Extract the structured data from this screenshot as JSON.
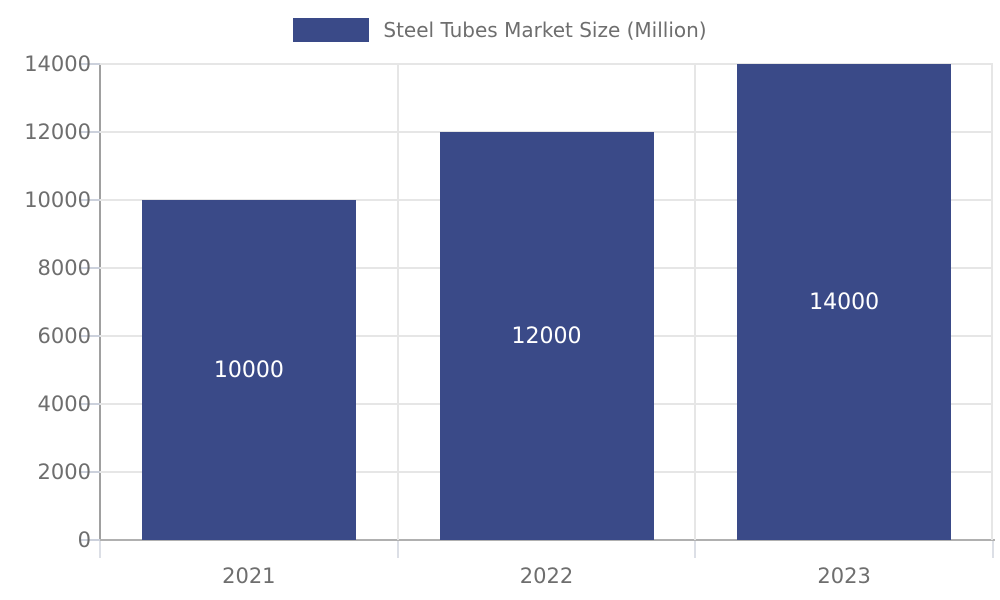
{
  "chart_data": {
    "type": "bar",
    "title": "Steel Tubes Market Size (Million)",
    "categories": [
      "2021",
      "2022",
      "2023"
    ],
    "values": [
      10000,
      12000,
      14000
    ],
    "value_labels": [
      "10000",
      "12000",
      "14000"
    ],
    "series": [
      {
        "name": "Steel Tubes Market Size (Million)",
        "values": [
          10000,
          12000,
          14000
        ]
      }
    ],
    "xlabel": "",
    "ylabel": "",
    "ylim": [
      0,
      14000
    ],
    "ytick_step": 2000,
    "ytick_labels": [
      "0",
      "2000",
      "4000",
      "6000",
      "8000",
      "10000",
      "12000",
      "14000"
    ],
    "grid": true,
    "legend_position": "top-center"
  },
  "colors": {
    "bar": "#3a4a88",
    "grid": "#e6e6e6",
    "axis_y": "#a0a0a0",
    "axis_x": "#b0b0b0",
    "ytick": "#ccd1dc",
    "xtick": "#dcdfe6",
    "text": "#6e6e6e",
    "value_label": "#ffffff",
    "background": "#ffffff"
  }
}
